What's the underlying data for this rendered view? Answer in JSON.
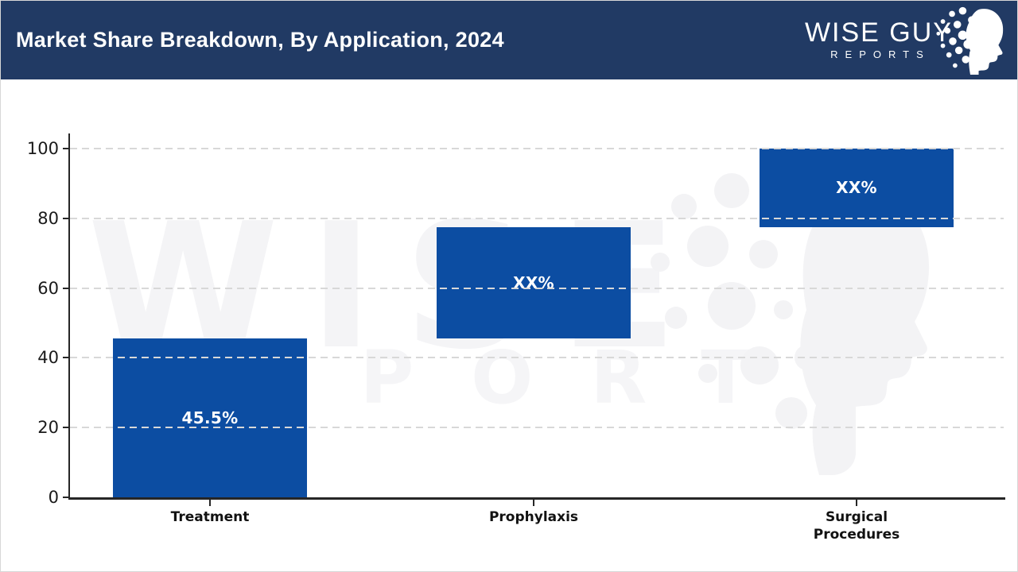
{
  "header": {
    "title": "Market Share Breakdown, By Application, 2024",
    "bg_color": "#213a64",
    "logo": {
      "line1": "WISE GUY",
      "line2": "REPORTS",
      "icon": "dotted-head-profile"
    }
  },
  "watermark": {
    "line1": "WISE",
    "line2": "REPORTS"
  },
  "chart_data": {
    "type": "bar",
    "subtype": "floating-waterfall",
    "title": "Market Share Breakdown, By Application, 2024",
    "categories": [
      "Treatment",
      "Prophylaxis",
      "Surgical Procedures"
    ],
    "segments": [
      {
        "category": "Treatment",
        "start": 0,
        "end": 45.5,
        "label": "45.5%"
      },
      {
        "category": "Prophylaxis",
        "start": 45.5,
        "end": 77.5,
        "label": "XX%"
      },
      {
        "category": "Surgical Procedures",
        "start": 77.5,
        "end": 100,
        "label": "XX%"
      }
    ],
    "bar_color": "#0c4da2",
    "bar_label_color": "#ffffff",
    "y_ticks": [
      0,
      20,
      40,
      60,
      80,
      100
    ],
    "ylim": [
      0,
      100
    ],
    "xlabel": "",
    "ylabel": "",
    "grid": "horizontal-dashed",
    "grid_color": "#d8d8d8",
    "legend": "none"
  }
}
